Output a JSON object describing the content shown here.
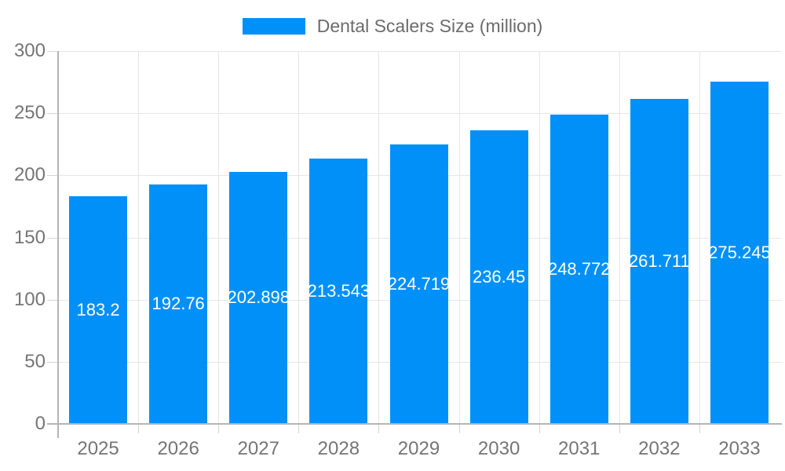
{
  "chart_data": {
    "type": "bar",
    "title": "Dental Scalers Size (million)",
    "categories": [
      "2025",
      "2026",
      "2027",
      "2028",
      "2029",
      "2030",
      "2031",
      "2032",
      "2033"
    ],
    "values": [
      183.2,
      192.76,
      202.898,
      213.543,
      224.719,
      236.45,
      248.772,
      261.711,
      275.245
    ],
    "bar_labels": [
      "183.2",
      "192.76",
      "202.898",
      "213.543",
      "224.719",
      "236.45",
      "248.772",
      "261.711",
      "275.245"
    ],
    "xlabel": "",
    "ylabel": "",
    "ylim": [
      0,
      300
    ],
    "yticks": [
      0,
      50,
      100,
      150,
      200,
      250,
      300
    ],
    "grid": true,
    "legend_position": "top",
    "colors": {
      "bar": "#0190f8",
      "bar_label": "#ffffff",
      "grid": "#e6e6e6",
      "axis_line": "#b5b5b5",
      "tick": "#d4d4d4",
      "axis_text": "#757575",
      "legend_text": "#6b6b6b",
      "background": "#ffffff"
    }
  }
}
